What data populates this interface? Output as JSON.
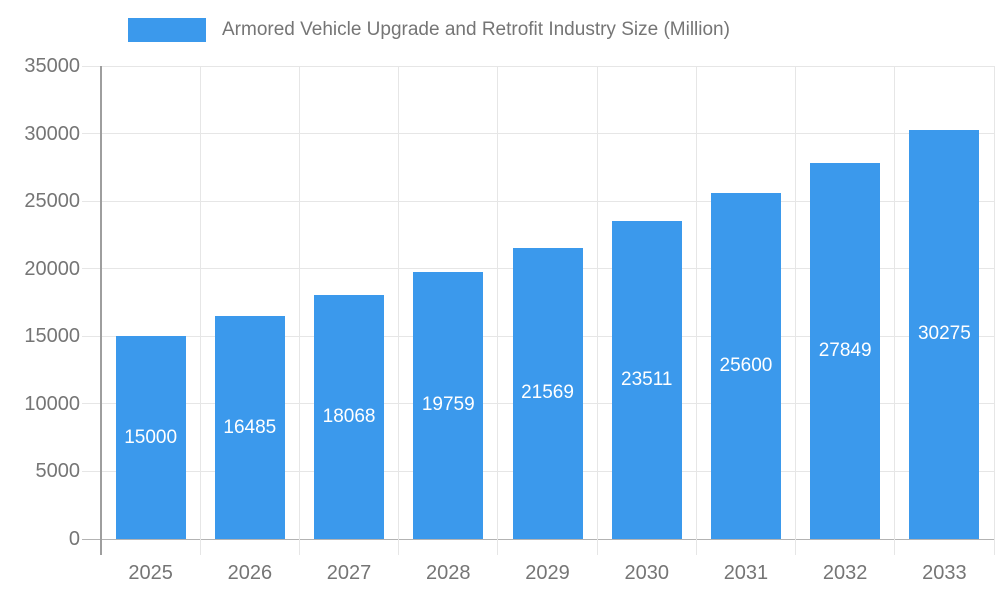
{
  "legend": {
    "label": "Armored Vehicle Upgrade and Retrofit Industry Size (Million)"
  },
  "chart_data": {
    "type": "bar",
    "title": "Armored Vehicle Upgrade and Retrofit Industry Size (Million)",
    "categories": [
      "2025",
      "2026",
      "2027",
      "2028",
      "2029",
      "2030",
      "2031",
      "2032",
      "2033"
    ],
    "values": [
      15000,
      16485,
      18068,
      19759,
      21569,
      23511,
      25600,
      27849,
      30275
    ],
    "value_labels": [
      "15000",
      "16485",
      "18068",
      "19759",
      "21569",
      "23511",
      "25600",
      "27849",
      "30275"
    ],
    "xlabel": "",
    "ylabel": "",
    "ylim": [
      0,
      35000
    ],
    "ytick_step": 5000,
    "ytick_labels": [
      "0",
      "5000",
      "10000",
      "15000",
      "20000",
      "25000",
      "30000",
      "35000"
    ],
    "grid": true,
    "legend_position": "top",
    "colors": {
      "bar": "#3B99EC",
      "bar_label_text": "#ffffff",
      "axis_text": "#757575",
      "gridline": "#e6e6e6",
      "y_axis_line": "#9e9e9e",
      "zero_line": "#b3b3b3",
      "title_text": "#757575"
    }
  }
}
